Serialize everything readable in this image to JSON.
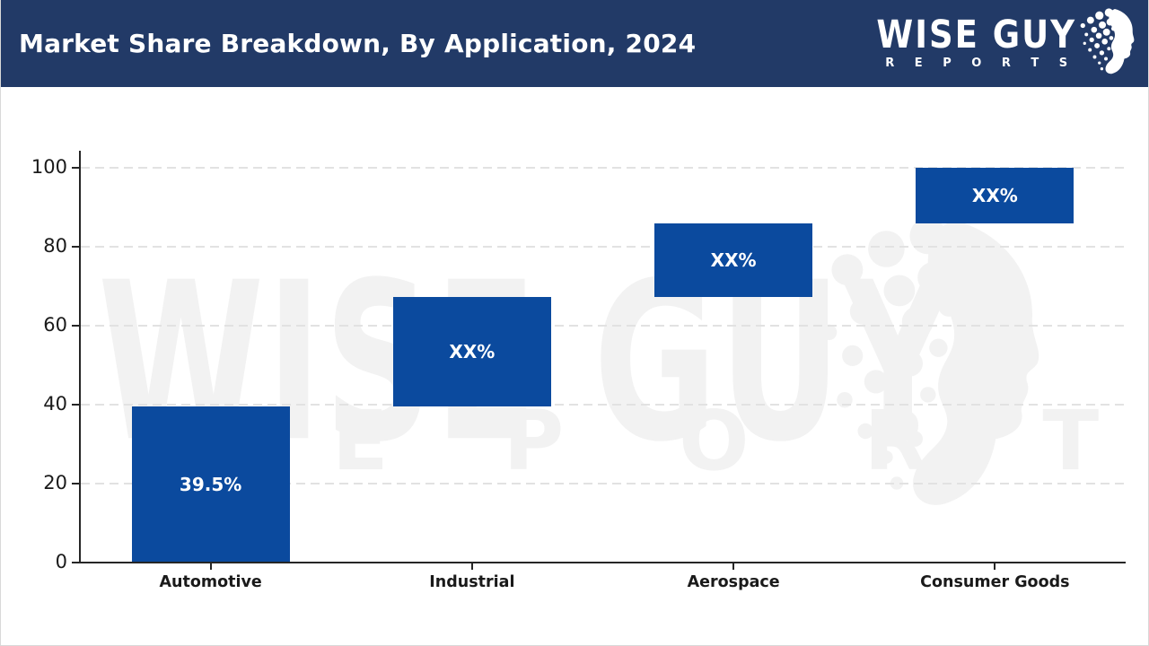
{
  "header": {
    "title": "Market Share Breakdown, By Application, 2024",
    "logo": {
      "brand_line1": "WISE GUY",
      "brand_line2": "R E P O R T S"
    }
  },
  "watermark": {
    "line1": "WISE GUY",
    "line2": "R E P O R T S"
  },
  "colors": {
    "header_bg": "#223a67",
    "bar": "#0b4a9e",
    "bar_label": "#ffffff",
    "grid": "#e2e2e2",
    "axis": "#262626",
    "watermark": "#f2f2f2"
  },
  "chart_data": {
    "type": "bar",
    "subtype": "waterfall",
    "title": "Market Share Breakdown, By Application, 2024",
    "categories": [
      "Automotive",
      "Industrial",
      "Aerospace",
      "Consumer Goods"
    ],
    "series": [
      {
        "name": "Market share by application (%)",
        "segments": [
          {
            "category": "Automotive",
            "start": 0,
            "end": 39.5,
            "label": "39.5%"
          },
          {
            "category": "Industrial",
            "start": 39.5,
            "end": 67.3,
            "label": "XX%"
          },
          {
            "category": "Aerospace",
            "start": 67.3,
            "end": 86.0,
            "label": "XX%"
          },
          {
            "category": "Consumer Goods",
            "start": 86.0,
            "end": 100.0,
            "label": "XX%"
          }
        ]
      }
    ],
    "ylim": [
      0,
      100
    ],
    "yticks": [
      0,
      20,
      40,
      60,
      80,
      100
    ],
    "xlabel": "",
    "ylabel": "",
    "grid": "horizontal-dashed",
    "legend": "none"
  }
}
